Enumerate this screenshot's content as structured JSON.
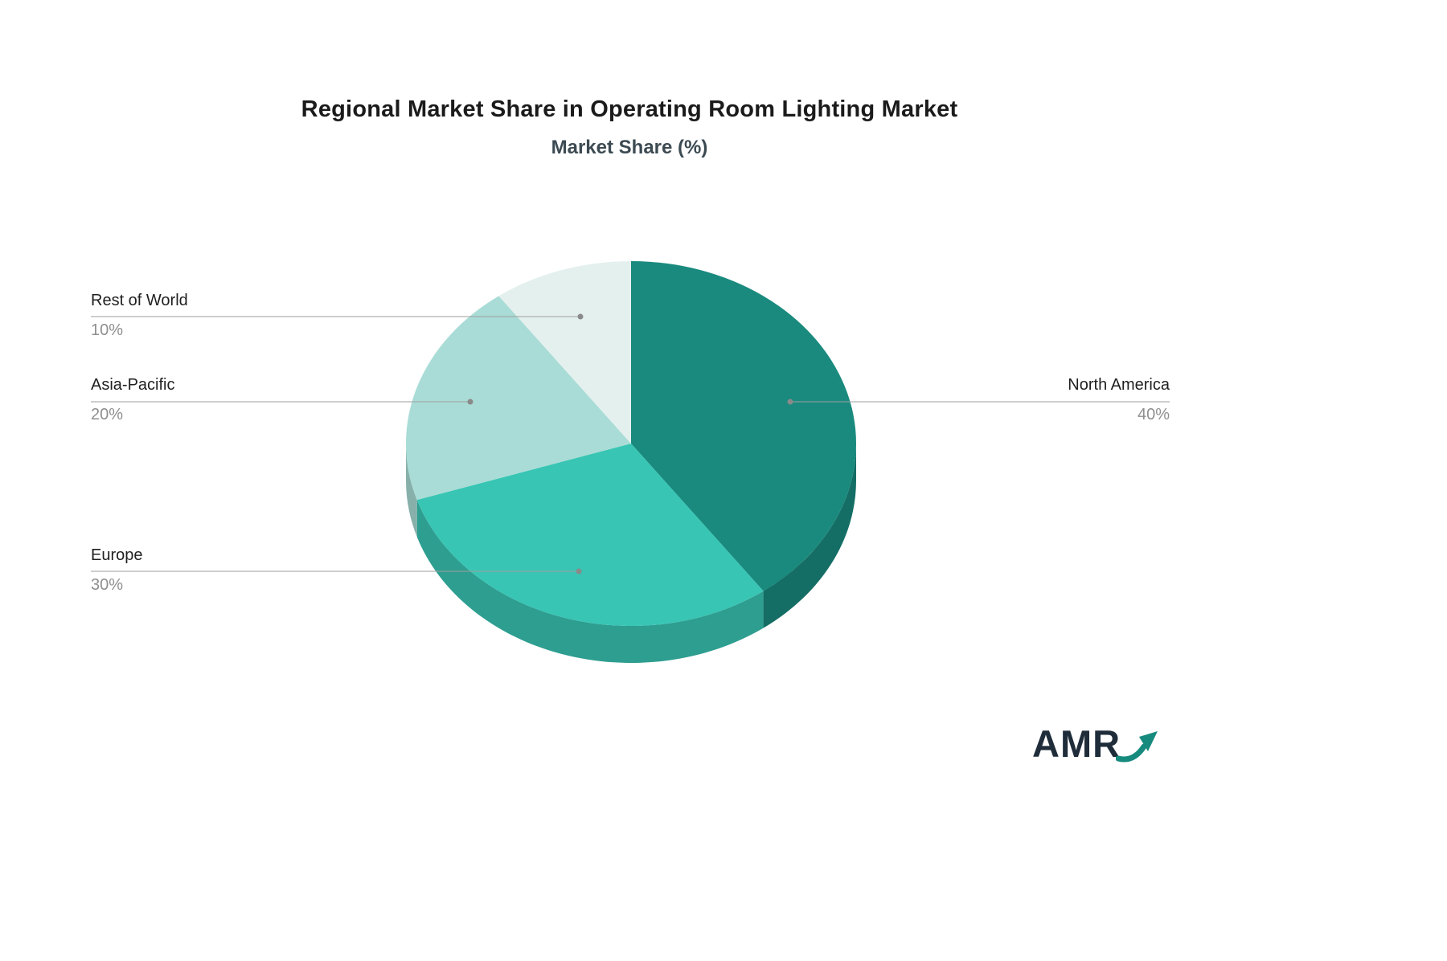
{
  "page": {
    "background": "#ffffff"
  },
  "header": {
    "title": "Regional Market Share in Operating Room Lighting Market",
    "subtitle": "Market Share (%)"
  },
  "chart_data": {
    "type": "pie",
    "style": "3d",
    "title": "Regional Market Share in Operating Room Lighting Market",
    "subtitle": "Market Share (%)",
    "unit": "%",
    "start_angle_deg": -90,
    "direction": "clockwise",
    "legend_position": "callout-labels",
    "segments": [
      {
        "label": "North America",
        "value": 40,
        "percent_label": "40%",
        "color": "#1a8a7e"
      },
      {
        "label": "Europe",
        "value": 30,
        "percent_label": "30%",
        "color": "#38c5b4"
      },
      {
        "label": "Asia-Pacific",
        "value": 20,
        "percent_label": "20%",
        "color": "#a9dcd6"
      },
      {
        "label": "Rest of World",
        "value": 10,
        "percent_label": "10%",
        "color": "#e4f0ee"
      }
    ],
    "callout_line_color": "#9e9e9e",
    "callout_dot_color": "#8a8a8a"
  },
  "logo": {
    "text": "AMR",
    "arrow_icon": "trend-up-arrow",
    "text_color": "#1f2c3a",
    "accent_color": "#178a7e"
  }
}
